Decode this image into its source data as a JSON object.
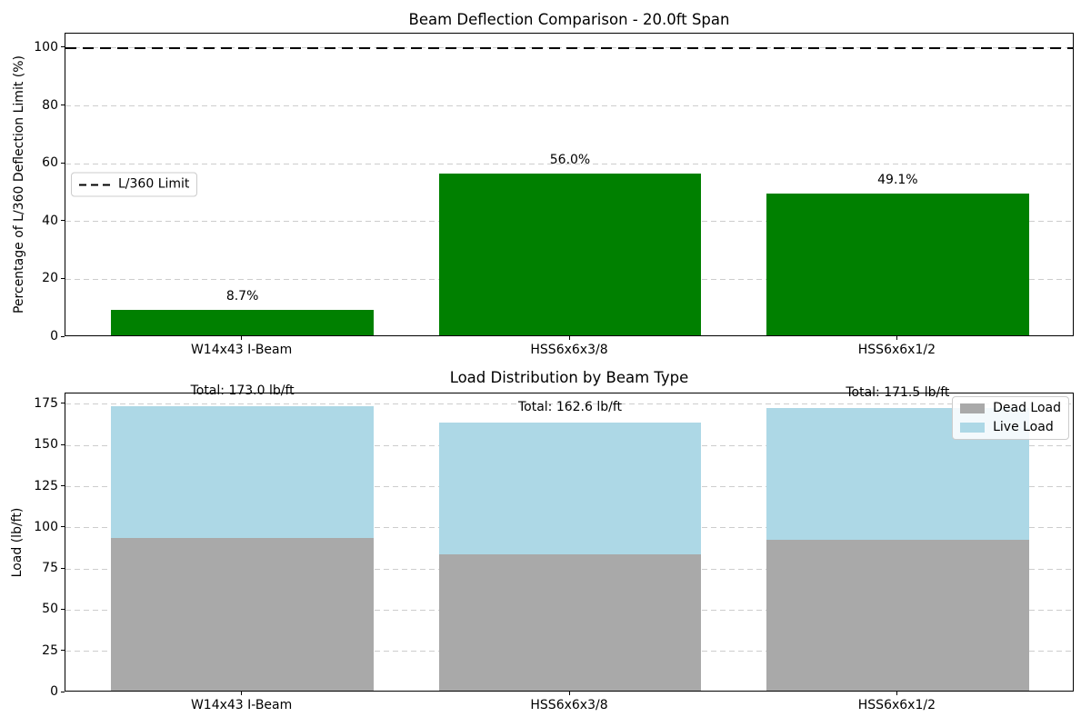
{
  "figure": {
    "background": "#ffffff"
  },
  "chart_data": [
    {
      "type": "bar",
      "title": "Beam Deflection Comparison - 20.0ft Span",
      "ylabel": "Percentage of L/360 Deflection Limit (%)",
      "xlabel": "",
      "categories": [
        "W14x43 I-Beam",
        "HSS6x6x3/8",
        "HSS6x6x1/2"
      ],
      "values": [
        8.7,
        56.0,
        49.1
      ],
      "bar_labels": [
        "8.7%",
        "56.0%",
        "49.1%"
      ],
      "bar_color": "#008000",
      "yticks": [
        0,
        20,
        40,
        60,
        80,
        100
      ],
      "ylim": [
        0,
        105
      ],
      "grid": "dashed-horizontal",
      "reference_line": {
        "value": 100,
        "label": "L/360 Limit",
        "color": "#000000",
        "style": "dashed"
      },
      "legend": {
        "position": "center-left",
        "entries": [
          {
            "label": "L/360 Limit",
            "marker": "dashed-line",
            "color": "#000000"
          }
        ]
      }
    },
    {
      "type": "stacked-bar",
      "title": "Load Distribution by Beam Type",
      "ylabel": "Load (lb/ft)",
      "xlabel": "",
      "categories": [
        "W14x43 I-Beam",
        "HSS6x6x3/8",
        "HSS6x6x1/2"
      ],
      "series": [
        {
          "name": "Dead Load",
          "values": [
            93.0,
            82.6,
            91.5
          ],
          "color": "#a9a9a9"
        },
        {
          "name": "Live Load",
          "values": [
            80.0,
            80.0,
            80.0
          ],
          "color": "#add8e6"
        }
      ],
      "totals": [
        173.0,
        162.6,
        171.5
      ],
      "total_labels": [
        "Total: 173.0 lb/ft",
        "Total: 162.6 lb/ft",
        "Total: 171.5 lb/ft"
      ],
      "yticks": [
        0,
        25,
        50,
        75,
        100,
        125,
        150,
        175
      ],
      "ylim": [
        0,
        181.6
      ],
      "grid": "dashed-horizontal",
      "legend": {
        "position": "top-right",
        "entries": [
          {
            "label": "Dead Load",
            "marker": "square",
            "color": "#a9a9a9"
          },
          {
            "label": "Live Load",
            "marker": "square",
            "color": "#add8e6"
          }
        ]
      }
    }
  ]
}
